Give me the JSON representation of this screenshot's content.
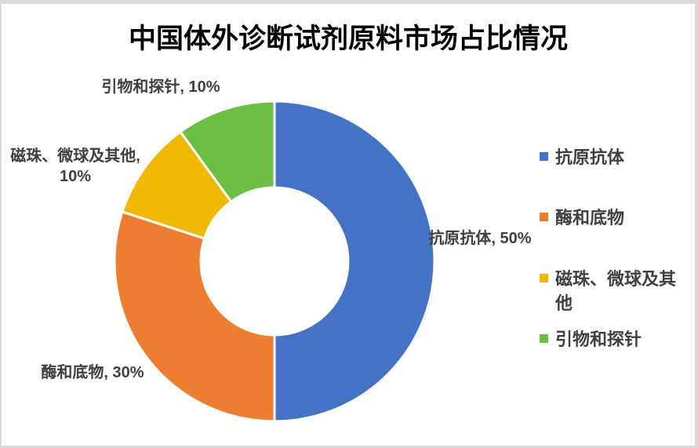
{
  "chart_data": {
    "type": "pie",
    "subtype": "donut",
    "title": "中国体外诊断试剂原料市场占比情况",
    "categories": [
      "抗原抗体",
      "酶和底物",
      "磁珠、微球及其他",
      "引物和探针"
    ],
    "values": [
      50,
      30,
      10,
      10
    ],
    "unit": "%",
    "colors": [
      "#4472C4",
      "#ED7D31",
      "#F0B800",
      "#6CBE45"
    ],
    "data_labels": [
      "抗原抗体, 50%",
      "酶和底物, 30%",
      "磁珠、微球及其他,\n10%",
      "引物和探针, 10%"
    ],
    "legend_position": "right",
    "start_angle_deg": 0,
    "direction": "clockwise",
    "inner_radius_ratio": 0.46,
    "slice_gap_color": "#ffffff",
    "label_color": "#404040",
    "title_color": "#000000"
  }
}
